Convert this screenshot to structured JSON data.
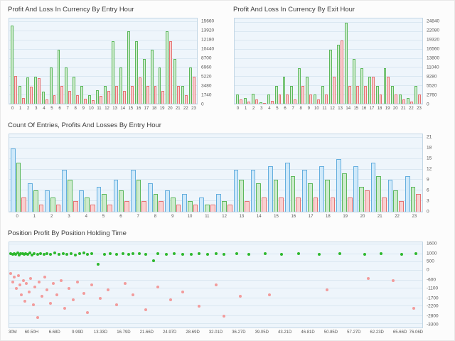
{
  "page": {
    "background": "#fcfcfc",
    "plot_background": "#eef5fb",
    "plot_border": "#c2d6e5",
    "grid_color": "#dae7f1"
  },
  "chart_data": [
    {
      "type": "bar",
      "title": "Profit And Loss In Currency By Entry Hour",
      "categories": [
        "0",
        "1",
        "2",
        "3",
        "4",
        "5",
        "6",
        "7",
        "8",
        "9",
        "10",
        "11",
        "12",
        "13",
        "14",
        "15",
        "16",
        "17",
        "18",
        "19",
        "20",
        "21",
        "22",
        "23"
      ],
      "series": [
        {
          "name": "profit",
          "fill": "#cdeacc",
          "stroke": "#5cb85c",
          "values": [
            15000,
            3400,
            5100,
            5200,
            2400,
            7000,
            10400,
            7000,
            5200,
            3400,
            1700,
            2600,
            3500,
            12100,
            7000,
            13900,
            12100,
            8700,
            10400,
            7000,
            14000,
            8700,
            3400,
            7000
          ]
        },
        {
          "name": "loss",
          "fill": "#f9d0d0",
          "stroke": "#e57373",
          "values": [
            5300,
            1100,
            3300,
            5000,
            800,
            1700,
            3400,
            2500,
            1700,
            1000,
            700,
            1500,
            2500,
            3400,
            2500,
            3400,
            5100,
            3400,
            3400,
            2500,
            12100,
            3400,
            1700,
            5200
          ]
        }
      ],
      "yticks": [
        0,
        1740,
        3480,
        5220,
        6960,
        8700,
        10440,
        12180,
        13920,
        15660
      ],
      "ylim": [
        0,
        16400
      ],
      "grid": true,
      "y_axis_position": "right",
      "legend": "none"
    },
    {
      "type": "bar",
      "title": "Profit And Loss In Currency By Exit Hour",
      "categories": [
        "0",
        "1",
        "2",
        "3",
        "4",
        "5",
        "6",
        "7",
        "8",
        "9",
        "10",
        "11",
        "12",
        "13",
        "14",
        "15",
        "16",
        "17",
        "18",
        "19",
        "20",
        "21",
        "22",
        "23"
      ],
      "series": [
        {
          "name": "profit",
          "fill": "#cdeacc",
          "stroke": "#5cb85c",
          "values": [
            2800,
            1900,
            3000,
            600,
            2800,
            5500,
            8300,
            5500,
            11000,
            8300,
            2800,
            5500,
            16600,
            18100,
            24800,
            13800,
            11000,
            8300,
            5500,
            11000,
            5500,
            2800,
            1900,
            5500
          ]
        },
        {
          "name": "loss",
          "fill": "#f9d0d0",
          "stroke": "#e57373",
          "values": [
            1300,
            700,
            1400,
            300,
            900,
            2800,
            2800,
            1400,
            5500,
            2800,
            1400,
            2800,
            8300,
            19300,
            5500,
            5500,
            5500,
            8300,
            2800,
            8300,
            2800,
            1400,
            700,
            2800
          ]
        }
      ],
      "yticks": [
        0,
        2760,
        5520,
        8280,
        11040,
        13800,
        16560,
        19320,
        22080,
        24840
      ],
      "ylim": [
        0,
        26100
      ],
      "grid": true,
      "y_axis_position": "right",
      "legend": "none"
    },
    {
      "type": "bar",
      "title": "Count Of Entries, Profits And Losses By Entry Hour",
      "categories": [
        "0",
        "1",
        "2",
        "3",
        "4",
        "5",
        "6",
        "7",
        "8",
        "9",
        "10",
        "11",
        "12",
        "13",
        "14",
        "15",
        "16",
        "17",
        "18",
        "19",
        "20",
        "21",
        "22",
        "23"
      ],
      "series": [
        {
          "name": "entries",
          "fill": "#cfe9fa",
          "stroke": "#64aede",
          "values": [
            18,
            8,
            6,
            12,
            6,
            7,
            9,
            12,
            8,
            6,
            5,
            4,
            5,
            12,
            12,
            13,
            14,
            12,
            13,
            15,
            13,
            14,
            9,
            10
          ]
        },
        {
          "name": "profit",
          "fill": "#cdeacc",
          "stroke": "#5cb85c",
          "values": [
            14,
            6,
            4,
            9,
            4,
            5,
            6,
            9,
            5,
            4,
            3,
            2,
            3,
            9,
            8,
            9,
            10,
            8,
            9,
            11,
            7,
            10,
            6,
            7
          ]
        },
        {
          "name": "loss",
          "fill": "#f9d0d0",
          "stroke": "#e57373",
          "values": [
            4,
            2,
            2,
            3,
            2,
            2,
            3,
            3,
            3,
            2,
            2,
            2,
            2,
            3,
            4,
            4,
            4,
            4,
            4,
            4,
            6,
            4,
            3,
            5
          ]
        }
      ],
      "yticks": [
        0,
        3,
        6,
        9,
        12,
        15,
        18,
        21
      ],
      "ylim": [
        0,
        22
      ],
      "grid": true,
      "y_axis_position": "right",
      "legend": "none"
    },
    {
      "type": "scatter",
      "title": "Position Profit By Position Holding Time",
      "x_tick_labels": [
        "30M",
        "60.50H",
        "6.68D",
        "9.99D",
        "13.33D",
        "16.79D",
        "21.66D",
        "24.97D",
        "28.69D",
        "32.01D",
        "36.27D",
        "39.05D",
        "43.21D",
        "46.81D",
        "50.85D",
        "57.27D",
        "62.23D",
        "65.66D",
        "76.06D"
      ],
      "yticks": [
        1600,
        1000,
        500,
        0,
        -600,
        -1100,
        -1700,
        -2200,
        -2800,
        -3300
      ],
      "ylim": [
        -3500,
        1750
      ],
      "grid": true,
      "y_axis_position": "right",
      "legend": "none",
      "series": [
        {
          "name": "profit",
          "color": "#2eb82e",
          "points": [
            [
              0.004,
              1040
            ],
            [
              0.008,
              980
            ],
            [
              0.012,
              1060
            ],
            [
              0.016,
              1000
            ],
            [
              0.02,
              1090
            ],
            [
              0.024,
              950
            ],
            [
              0.028,
              1020
            ],
            [
              0.032,
              1060
            ],
            [
              0.036,
              990
            ],
            [
              0.04,
              1040
            ],
            [
              0.045,
              1010
            ],
            [
              0.05,
              1080
            ],
            [
              0.055,
              960
            ],
            [
              0.06,
              1030
            ],
            [
              0.068,
              1000
            ],
            [
              0.076,
              1060
            ],
            [
              0.084,
              980
            ],
            [
              0.092,
              1040
            ],
            [
              0.1,
              1010
            ],
            [
              0.11,
              1070
            ],
            [
              0.12,
              990
            ],
            [
              0.13,
              1050
            ],
            [
              0.14,
              1000
            ],
            [
              0.15,
              1060
            ],
            [
              0.16,
              930
            ],
            [
              0.17,
              1020
            ],
            [
              0.18,
              1080
            ],
            [
              0.19,
              1000
            ],
            [
              0.2,
              1040
            ],
            [
              0.215,
              400
            ],
            [
              0.23,
              1010
            ],
            [
              0.245,
              1060
            ],
            [
              0.26,
              1000
            ],
            [
              0.275,
              1040
            ],
            [
              0.29,
              980
            ],
            [
              0.3,
              1060
            ],
            [
              0.315,
              1020
            ],
            [
              0.33,
              1000
            ],
            [
              0.35,
              600
            ],
            [
              0.36,
              1050
            ],
            [
              0.38,
              1000
            ],
            [
              0.4,
              1060
            ],
            [
              0.42,
              1010
            ],
            [
              0.44,
              980
            ],
            [
              0.46,
              1040
            ],
            [
              0.48,
              1000
            ],
            [
              0.5,
              1060
            ],
            [
              0.52,
              1010
            ],
            [
              0.55,
              1040
            ],
            [
              0.58,
              990
            ],
            [
              0.62,
              1050
            ],
            [
              0.66,
              1000
            ],
            [
              0.7,
              1060
            ],
            [
              0.75,
              1010
            ],
            [
              0.8,
              1040
            ],
            [
              0.86,
              1000
            ],
            [
              0.9,
              1050
            ],
            [
              0.95,
              1000
            ],
            [
              0.985,
              1040
            ]
          ]
        },
        {
          "name": "loss",
          "color": "#f29b9b",
          "points": [
            [
              0.004,
              -200
            ],
            [
              0.008,
              -700
            ],
            [
              0.012,
              -400
            ],
            [
              0.018,
              -1100
            ],
            [
              0.022,
              -300
            ],
            [
              0.026,
              -900
            ],
            [
              0.03,
              -1500
            ],
            [
              0.034,
              -600
            ],
            [
              0.038,
              -1900
            ],
            [
              0.042,
              -800
            ],
            [
              0.048,
              -1300
            ],
            [
              0.052,
              -500
            ],
            [
              0.058,
              -2100
            ],
            [
              0.062,
              -1000
            ],
            [
              0.068,
              -2900
            ],
            [
              0.072,
              -700
            ],
            [
              0.08,
              -1600
            ],
            [
              0.086,
              -400
            ],
            [
              0.092,
              -1200
            ],
            [
              0.1,
              -2000
            ],
            [
              0.106,
              -800
            ],
            [
              0.115,
              -1500
            ],
            [
              0.125,
              -600
            ],
            [
              0.135,
              -2300
            ],
            [
              0.145,
              -1100
            ],
            [
              0.155,
              -1800
            ],
            [
              0.165,
              -700
            ],
            [
              0.18,
              -1400
            ],
            [
              0.19,
              -2600
            ],
            [
              0.2,
              -900
            ],
            [
              0.22,
              -1700
            ],
            [
              0.24,
              -1200
            ],
            [
              0.26,
              -2100
            ],
            [
              0.28,
              -800
            ],
            [
              0.3,
              -1500
            ],
            [
              0.33,
              -2400
            ],
            [
              0.36,
              -1000
            ],
            [
              0.39,
              -1800
            ],
            [
              0.42,
              -1300
            ],
            [
              0.46,
              -2200
            ],
            [
              0.5,
              -900
            ],
            [
              0.52,
              -2800
            ],
            [
              0.56,
              -1600
            ],
            [
              0.63,
              -1500
            ],
            [
              0.77,
              -1200
            ],
            [
              0.87,
              -500
            ],
            [
              0.93,
              -600
            ],
            [
              0.98,
              -2300
            ]
          ]
        }
      ]
    }
  ]
}
